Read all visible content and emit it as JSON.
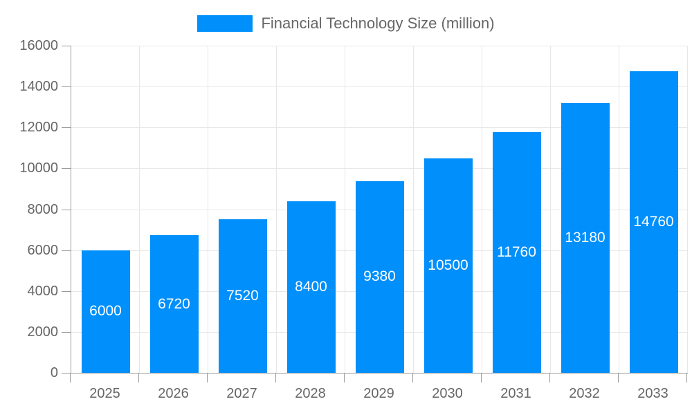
{
  "chart_data": {
    "type": "bar",
    "title": "Financial Technology Size (million)",
    "categories": [
      "2025",
      "2026",
      "2027",
      "2028",
      "2029",
      "2030",
      "2031",
      "2032",
      "2033"
    ],
    "values": [
      6000,
      6720,
      7520,
      8400,
      9380,
      10500,
      11760,
      13180,
      14760
    ],
    "xlabel": "",
    "ylabel": "",
    "ylim": [
      0,
      16000
    ],
    "y_tick_step": 2000,
    "y_ticks": [
      16000,
      14000,
      12000,
      10000,
      8000,
      6000,
      4000,
      2000,
      0
    ],
    "legend_position": "top-center",
    "grid": true,
    "bar_label_position": "inside-center",
    "colors": {
      "bar": "#008FFB",
      "bar_label": "#FFFFFF",
      "axis_text": "#666666",
      "axis_line": "#999999",
      "gridline": "#E7E7E7",
      "background": "#FFFFFF"
    }
  }
}
